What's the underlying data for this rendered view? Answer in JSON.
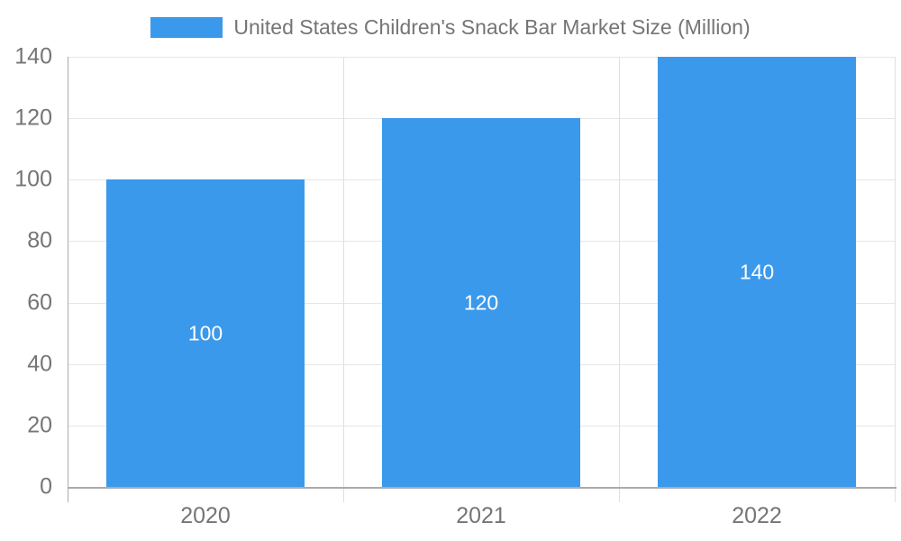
{
  "chart_data": {
    "type": "bar",
    "title": "United States Children's Snack Bar Market Size (Million)",
    "categories": [
      "2020",
      "2021",
      "2022"
    ],
    "values": [
      100,
      120,
      140
    ],
    "yticks": [
      0,
      20,
      40,
      60,
      80,
      100,
      120,
      140
    ],
    "ylim": [
      0,
      140
    ],
    "xlabel": "",
    "ylabel": "",
    "grid": true,
    "legend_position": "top-center",
    "bar_color": "#3B99EC",
    "bar_label_color": "#ffffff",
    "axis_text_color": "#757575",
    "grid_color": "#e6e6e6",
    "axis_line_color": "#ababab"
  }
}
